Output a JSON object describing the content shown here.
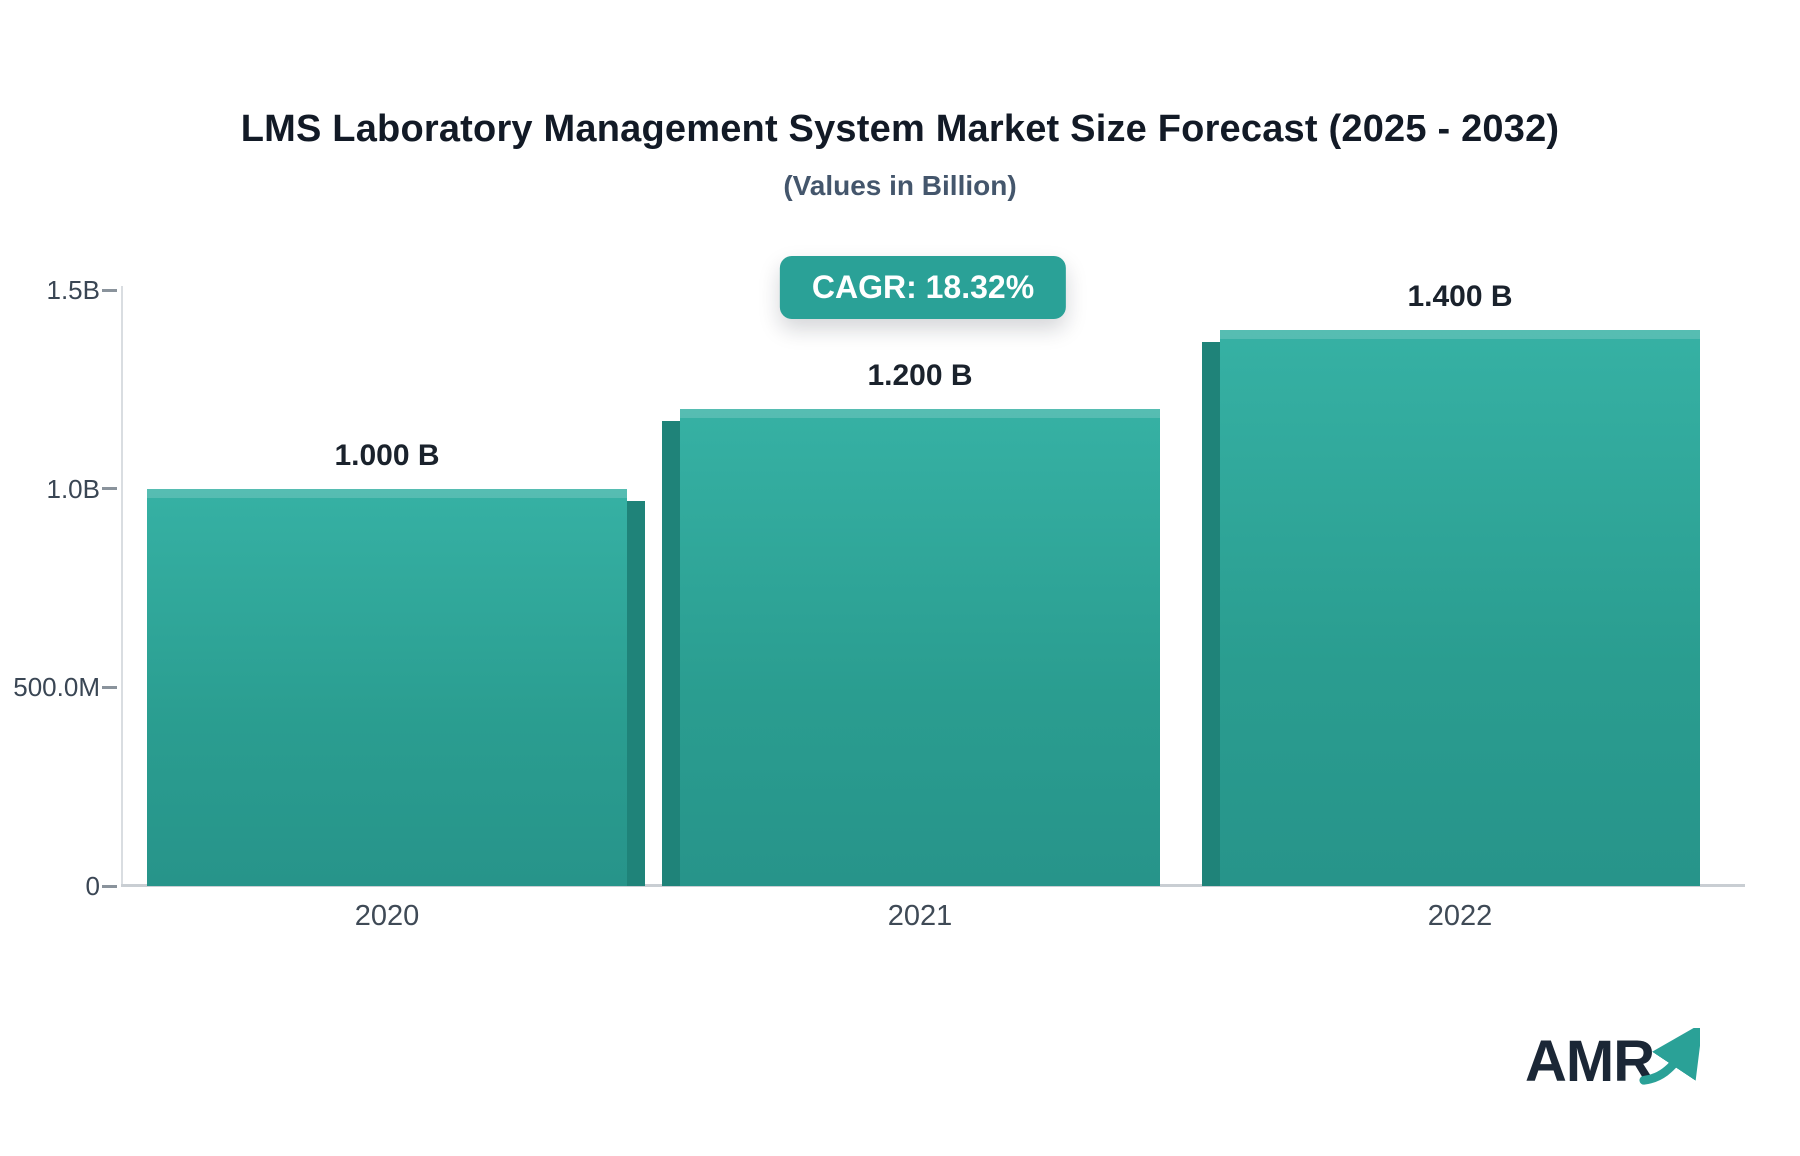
{
  "header": {
    "title": "LMS Laboratory Management System Market Size Forecast (2025 - 2032)",
    "subtitle": "(Values in Billion)"
  },
  "badge": {
    "label": "CAGR: 18.32%",
    "bg_color": "#2AA197",
    "text_color": "#FFFFFF"
  },
  "logo": {
    "text": "AMR",
    "arrow_color": "#2AA197",
    "text_color": "#1B2736"
  },
  "chart_data": {
    "type": "bar",
    "title": "LMS Laboratory Management System Market Size Forecast (2025 - 2032)",
    "subtitle": "(Values in Billion)",
    "unit": "Billion",
    "annotation": "CAGR: 18.32%",
    "categories": [
      "2020",
      "2021",
      "2022"
    ],
    "values": [
      1.0,
      1.2,
      1.4
    ],
    "value_labels": [
      "1.000 B",
      "1.200 B",
      "1.400 B"
    ],
    "xlabel": "",
    "ylabel": "",
    "ylim": [
      0,
      1.5
    ],
    "y_ticks": [
      {
        "value": 0,
        "label": "0"
      },
      {
        "value": 0.5,
        "label": "500.0M"
      },
      {
        "value": 1.0,
        "label": "1.0B"
      },
      {
        "value": 1.5,
        "label": "1.5B"
      }
    ],
    "grid": false,
    "legend_position": "none",
    "bar_color": "#2DA89B",
    "bar_side_color": "#1F8379"
  }
}
